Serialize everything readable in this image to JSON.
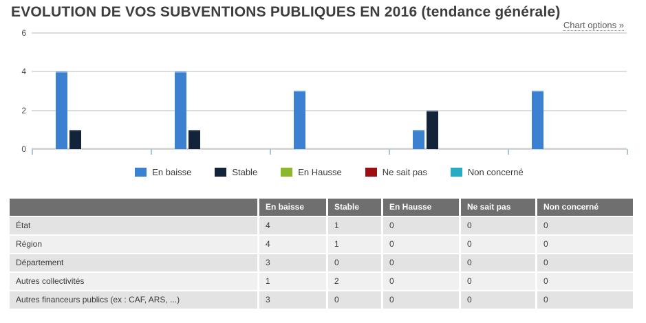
{
  "page": {
    "title": "EVOLUTION DE VOS SUBVENTIONS PUBLIQUES EN 2016 (tendance générale)",
    "chart_options_label": "Chart options »"
  },
  "colors": {
    "en_baisse": "#3b80d1",
    "stable": "#12233a",
    "en_hausse": "#8cb92c",
    "ne_sait_pas": "#9c0e10",
    "non_concerne": "#28abc5",
    "gridline": "#dcdcdc",
    "axis_line": "#d6d6d6",
    "axis_tick": "#a9c6d8",
    "table_header_bg": "#6f6f6f",
    "table_row_odd_bg": "#e3e3e3",
    "table_row_even_bg": "#f0f0f0"
  },
  "chart_data": {
    "type": "bar",
    "title": "EVOLUTION DE VOS SUBVENTIONS PUBLIQUES EN 2016 (tendance générale)",
    "categories": [
      "État",
      "Région",
      "Département",
      "Autres collectivités",
      "Autres financeurs publics (ex : CAF, ARS, ...)"
    ],
    "series": [
      {
        "name": "En baisse",
        "color": "#3b80d1",
        "values": [
          4,
          4,
          3,
          1,
          3
        ]
      },
      {
        "name": "Stable",
        "color": "#12233a",
        "values": [
          1,
          1,
          0,
          2,
          0
        ]
      },
      {
        "name": "En Hausse",
        "color": "#8cb92c",
        "values": [
          0,
          0,
          0,
          0,
          0
        ]
      },
      {
        "name": "Ne sait pas",
        "color": "#9c0e10",
        "values": [
          0,
          0,
          0,
          0,
          0
        ]
      },
      {
        "name": "Non concerné",
        "color": "#28abc5",
        "values": [
          0,
          0,
          0,
          0,
          0
        ]
      }
    ],
    "ylim": [
      0,
      6
    ],
    "yticks": [
      0,
      2,
      4,
      6
    ],
    "grid": true,
    "legend_position": "bottom",
    "xlabel": "",
    "ylabel": ""
  },
  "table": {
    "headers": [
      "",
      "En baisse",
      "Stable",
      "En Hausse",
      "Ne sait pas",
      "Non concerné"
    ],
    "rows": [
      {
        "label": "État",
        "values": [
          4,
          1,
          0,
          0,
          0
        ]
      },
      {
        "label": "Région",
        "values": [
          4,
          1,
          0,
          0,
          0
        ]
      },
      {
        "label": "Département",
        "values": [
          3,
          0,
          0,
          0,
          0
        ]
      },
      {
        "label": "Autres collectivités",
        "values": [
          1,
          2,
          0,
          0,
          0
        ]
      },
      {
        "label": "Autres financeurs publics (ex : CAF, ARS, ...)",
        "values": [
          3,
          0,
          0,
          0,
          0
        ]
      }
    ]
  }
}
